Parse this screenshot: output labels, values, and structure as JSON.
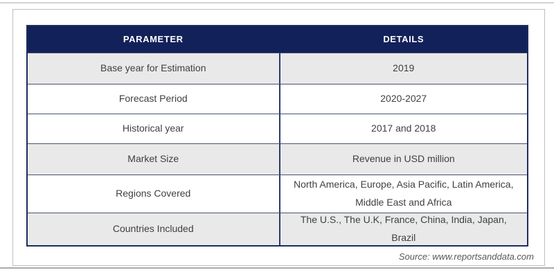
{
  "table": {
    "columns": {
      "parameter": "PARAMETER",
      "details": "DETAILS"
    },
    "rows": [
      {
        "parameter": "Base year for Estimation",
        "details": "2019",
        "shaded": true
      },
      {
        "parameter": "Forecast Period",
        "details": "2020-2027",
        "shaded": false
      },
      {
        "parameter": "Historical year",
        "details": "2017 and 2018",
        "shaded": false
      },
      {
        "parameter": "Market Size",
        "details": "Revenue in USD million",
        "shaded": true
      },
      {
        "parameter": "Regions Covered",
        "details": "North America, Europe, Asia Pacific, Latin America, Middle East and Africa",
        "shaded": false
      },
      {
        "parameter": "Countries Included",
        "details": "The U.S., The  U.K, France, China, India, Japan, Brazil",
        "shaded": true
      }
    ],
    "colors": {
      "header_bg": "#13215a",
      "header_text": "#ffffff",
      "shaded_row_bg": "#e9e9e9",
      "row_text": "#404040",
      "table_border": "#1d2c5f",
      "card_border": "#bdbdbd"
    }
  },
  "footer": {
    "source_note": "Source: www.reportsanddata.com"
  }
}
